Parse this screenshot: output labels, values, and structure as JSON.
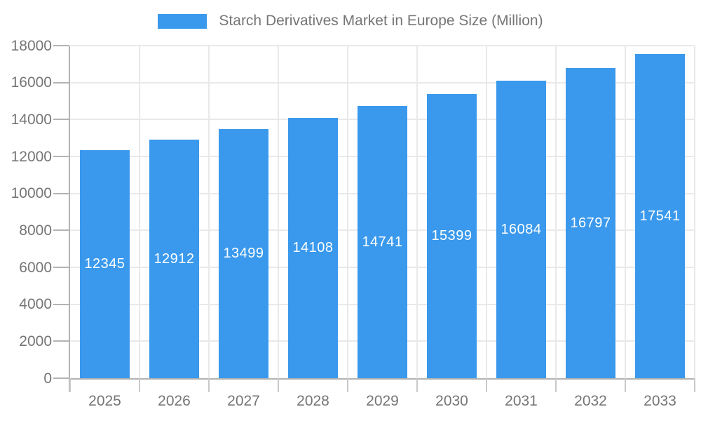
{
  "legend": {
    "label": "Starch Derivatives Market in Europe Size (Million)"
  },
  "chart_data": {
    "type": "bar",
    "title": "Starch Derivatives Market in Europe Size (Million)",
    "series_name": "Starch Derivatives Market in Europe Size (Million)",
    "categories": [
      "2025",
      "2026",
      "2027",
      "2028",
      "2029",
      "2030",
      "2031",
      "2032",
      "2033"
    ],
    "values": [
      12345,
      12912,
      13499,
      14108,
      14741,
      15399,
      16084,
      16797,
      17541
    ],
    "bar_value_labels": [
      "12345",
      "12912",
      "13499",
      "14108",
      "14741",
      "15399",
      "16084",
      "16797",
      "17541"
    ],
    "xlabel": "",
    "ylabel": "",
    "ylim": [
      0,
      18000
    ],
    "ytick_step": 2000,
    "yticks": [
      0,
      2000,
      4000,
      6000,
      8000,
      10000,
      12000,
      14000,
      16000,
      18000
    ],
    "grid": "horizontal and vertical gridlines on",
    "legend_position": "top-center",
    "value_label_position": "centered inside bar",
    "colors": {
      "bar": "#3a99ec",
      "bar_label_text": "#ffffff",
      "axis_text": "#757575",
      "axis_line": "#b3b3b3",
      "tick": "#c9c9c9",
      "gridline": "#e9e9e9",
      "background": "#ffffff"
    }
  }
}
